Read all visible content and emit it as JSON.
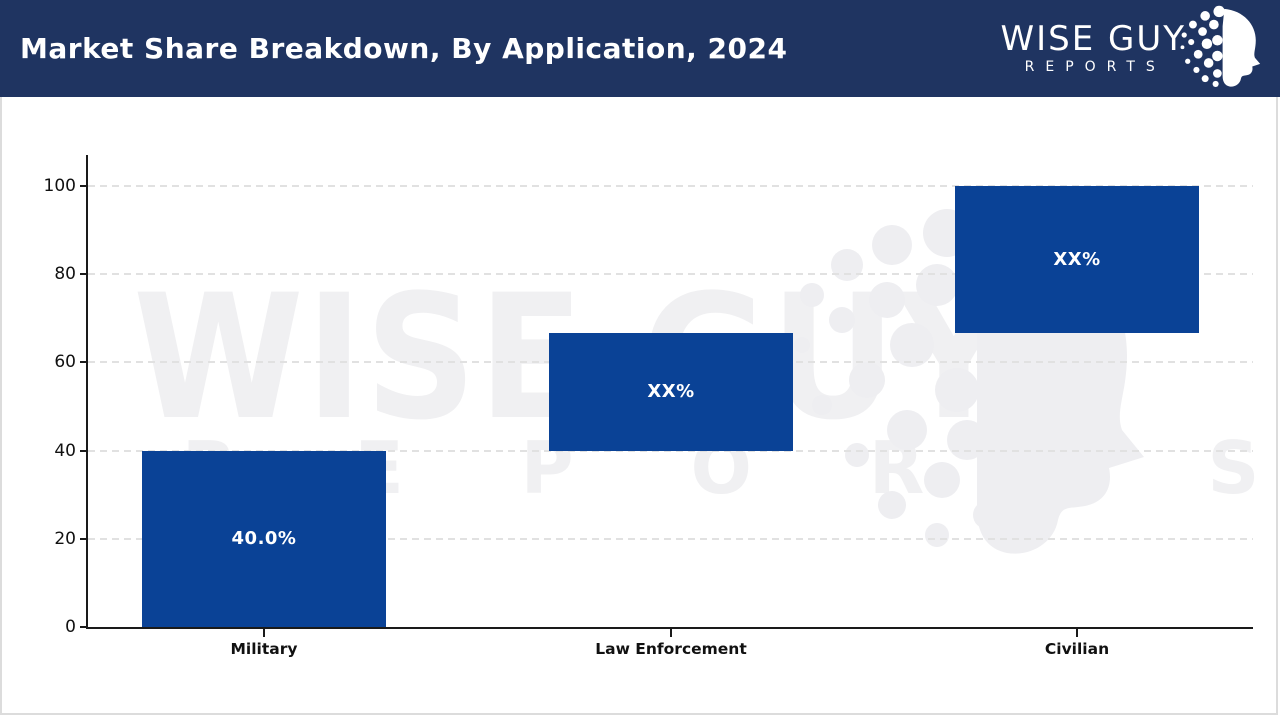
{
  "header": {
    "title": "Market Share Breakdown, By Application, 2024",
    "logo": {
      "line1": "WISE GUY",
      "line2": "REPORTS"
    }
  },
  "watermark": {
    "line1": "WISE GUY",
    "line2": "R E P O R T S"
  },
  "colors": {
    "header_bg": "#1f3461",
    "bar": "#0a4296",
    "axis": "#1a1a1a",
    "gridline": "#e1e1e1",
    "watermark": "#f0f0f2",
    "bar_label": "#ffffff"
  },
  "chart_data": {
    "type": "bar",
    "variant": "waterfall",
    "title": "Market Share Breakdown, By Application, 2024",
    "categories": [
      "Military",
      "Law Enforcement",
      "Civilian"
    ],
    "values": [
      40.0,
      26.7,
      33.3
    ],
    "bars": [
      {
        "category": "Military",
        "start": 0,
        "end": 40,
        "label": "40.0%"
      },
      {
        "category": "Law Enforcement",
        "start": 40,
        "end": 66.7,
        "label": "XX%"
      },
      {
        "category": "Civilian",
        "start": 66.7,
        "end": 100,
        "label": "XX%"
      }
    ],
    "xlabel": "",
    "ylabel": "",
    "yticks": [
      0,
      20,
      40,
      60,
      80,
      100
    ],
    "ylim": [
      0,
      107
    ],
    "grid": true,
    "grid_style": "dashed",
    "legend": false,
    "bar_color": "#0a4296"
  }
}
